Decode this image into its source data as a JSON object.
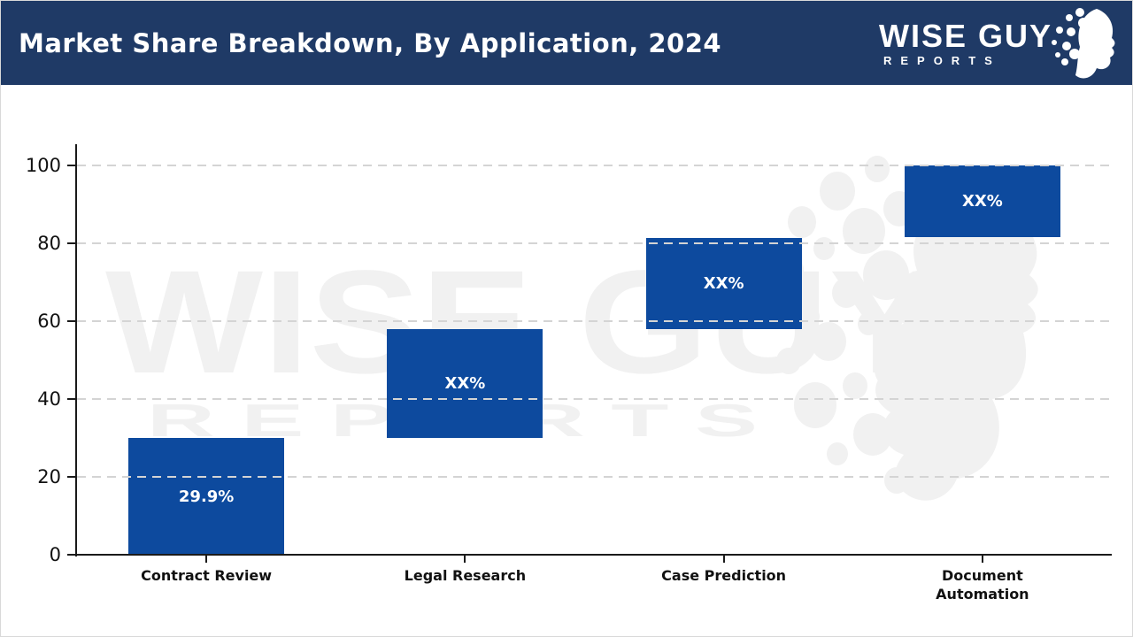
{
  "header": {
    "title": "Market Share Breakdown, By Application, 2024",
    "logo": {
      "line1": "WISE GUY",
      "line2": "REPORTS"
    }
  },
  "watermark": {
    "line1": "WISE GUY.",
    "line2": "R E P O R T S"
  },
  "chart_data": {
    "type": "bar",
    "subtype": "waterfall",
    "title": "Market Share Breakdown, By Application, 2024",
    "categories": [
      "Contract Review",
      "Legal Research",
      "Case Prediction",
      "Document Automation"
    ],
    "categories_display": [
      "Contract Review",
      "Legal Research",
      "Case Prediction",
      "Document\nAutomation"
    ],
    "segments": [
      {
        "category": "Contract Review",
        "start": 0,
        "end": 29.9,
        "label": "29.9%"
      },
      {
        "category": "Legal Research",
        "start": 29.9,
        "end": 58.0,
        "label": "XX%"
      },
      {
        "category": "Case Prediction",
        "start": 58.0,
        "end": 81.4,
        "label": "XX%"
      },
      {
        "category": "Document Automation",
        "start": 81.5,
        "end": 99.9,
        "label": "XX%"
      }
    ],
    "ylim": [
      0,
      100
    ],
    "yticks": [
      0,
      20,
      40,
      60,
      80,
      100
    ],
    "xlabel": "",
    "ylabel": "",
    "grid": "horizontal-dashed",
    "legend": "none",
    "bar_color": "#0d4a9e",
    "bar_label_color": "#ffffff"
  },
  "colors": {
    "header_bg": "#1f3a66",
    "bar": "#0d4a9e",
    "axis": "#1a1a1a",
    "grid": "#d4d4d4",
    "watermark": "#f1f1f1",
    "background": "#ffffff"
  }
}
